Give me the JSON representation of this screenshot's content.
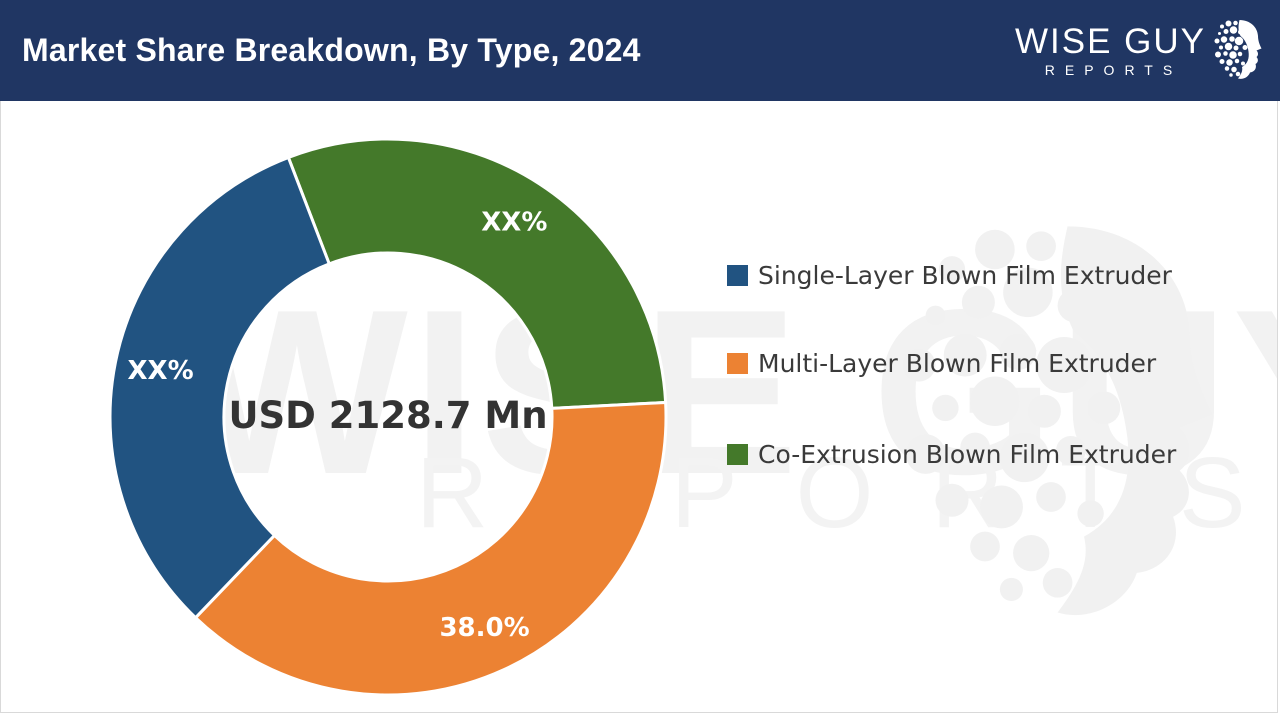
{
  "header": {
    "title": "Market Share Breakdown, By Type, 2024",
    "bg_color": "#203663",
    "logo": {
      "line1": "WISE GUY",
      "line2": "REPORTS"
    }
  },
  "watermark": {
    "line1": "WISE GUY",
    "line2": "REPORTS"
  },
  "chart_data": {
    "type": "pie",
    "title": "Market Share Breakdown, By Type, 2024",
    "donut": true,
    "center_total_label": "USD 2128.7 Mn",
    "start_angle_deg": -21,
    "inner_radius_ratio": 0.59,
    "legend_position": "right",
    "segments": [
      {
        "label": "Co-Extrusion Blown Film Extruder",
        "value_pct": 30,
        "display_label": "XX%",
        "color": "#44792a"
      },
      {
        "label": "Multi-Layer Blown Film Extruder",
        "value_pct": 38,
        "display_label": "38.0%",
        "color": "#ec8233"
      },
      {
        "label": "Single-Layer Blown Film Extruder",
        "value_pct": 32,
        "display_label": "XX%",
        "color": "#215381"
      }
    ],
    "legend": [
      {
        "label": "Single-Layer Blown Film Extruder",
        "color": "#215381"
      },
      {
        "label": "Multi-Layer Blown Film Extruder",
        "color": "#ec8233"
      },
      {
        "label": "Co-Extrusion Blown Film Extruder",
        "color": "#44792a"
      }
    ]
  }
}
